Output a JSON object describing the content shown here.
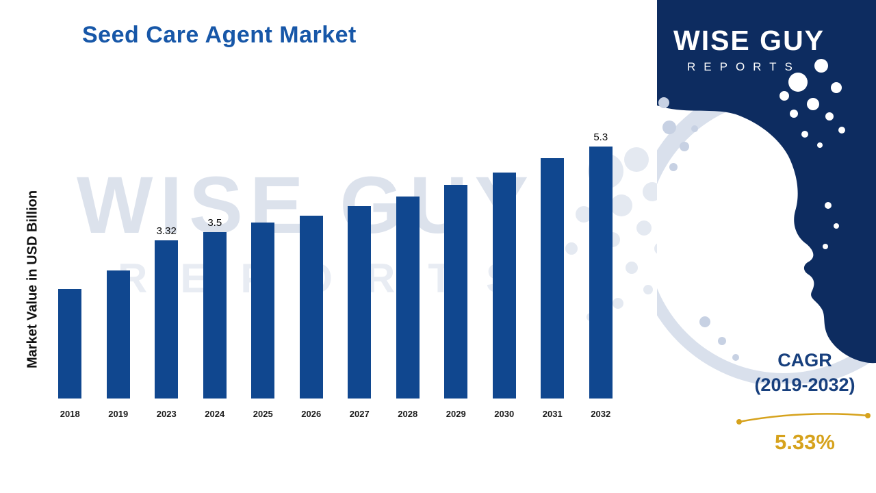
{
  "page": {
    "title": "Seed Care Agent Market"
  },
  "logo": {
    "name": "WISE GUY",
    "sub": "REPORTS"
  },
  "watermark": {
    "name": "WISE GUY",
    "sub": "REPORTS"
  },
  "chart_data": {
    "type": "bar",
    "title": "Seed Care Agent Market",
    "xlabel": "",
    "ylabel": "Market Value in USD Billion",
    "categories": [
      "2018",
      "2019",
      "2023",
      "2024",
      "2025",
      "2026",
      "2027",
      "2028",
      "2029",
      "2030",
      "2031",
      "2032"
    ],
    "values": [
      2.3,
      2.7,
      3.32,
      3.5,
      3.7,
      3.85,
      4.05,
      4.25,
      4.5,
      4.75,
      5.05,
      5.3
    ],
    "data_labels": {
      "2023": "3.32",
      "2024": "3.5",
      "2032": "5.3"
    },
    "ylim": [
      0,
      5.5
    ],
    "grid": false,
    "legend": false,
    "bar_color": "#10478f"
  },
  "cagr": {
    "label": "CAGR",
    "range": "(2019-2032)",
    "value": "5.33%"
  },
  "colors": {
    "title": "#1757a8",
    "bar": "#10478f",
    "logo_navy": "#0d2c60",
    "cagr_text": "#173f7d",
    "gold": "#d6a21c",
    "watermark": "#2c5190"
  }
}
